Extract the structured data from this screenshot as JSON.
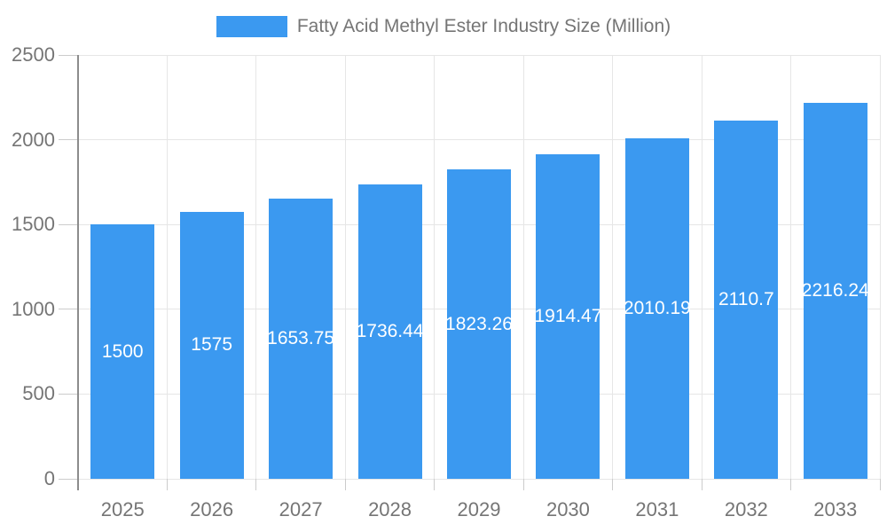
{
  "chart_data": {
    "type": "bar",
    "title": "Fatty Acid Methyl Ester Industry Size (Million)",
    "categories": [
      "2025",
      "2026",
      "2027",
      "2028",
      "2029",
      "2030",
      "2031",
      "2032",
      "2033"
    ],
    "values": [
      1500,
      1575,
      1653.75,
      1736.44,
      1823.26,
      1914.47,
      2010.19,
      2110.7,
      2216.24
    ],
    "bar_labels": [
      "1500",
      "1575",
      "1653.75",
      "1736.44",
      "1823.26",
      "1914.47",
      "2010.19",
      "2110.7",
      "2216.24"
    ],
    "xlabel": "",
    "ylabel": "",
    "ylim": [
      0,
      2500
    ],
    "y_ticks": [
      0,
      500,
      1000,
      1500,
      2000,
      2500
    ],
    "y_tick_labels": [
      "0",
      "500",
      "1000",
      "1500",
      "2000",
      "2500"
    ],
    "grid": true,
    "legend_position": "top-center",
    "colors": {
      "bar": "#3b99f0",
      "bar_label_text": "#ffffff",
      "axis_line": "#8c8c8c",
      "gridline": "#e6e6e6",
      "tick": "#cccccc",
      "tick_text": "#757575",
      "legend_text": "#757575"
    }
  }
}
